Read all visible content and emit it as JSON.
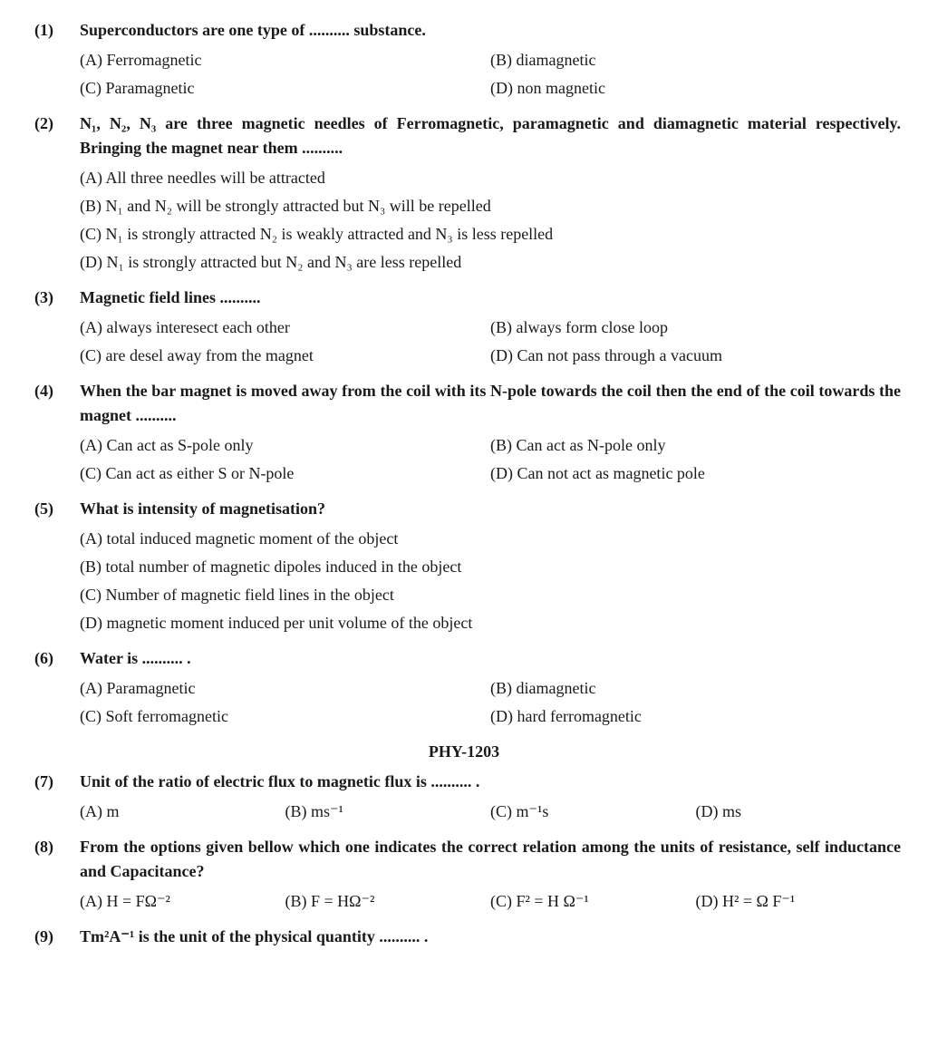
{
  "section_code": "PHY-1203",
  "questions": [
    {
      "num": "(1)",
      "text": "Superconductors are one type of .......... substance.",
      "layout": "col2",
      "opts": {
        "A": "(A) Ferromagnetic",
        "B": "(B) diamagnetic",
        "C": "(C) Paramagnetic",
        "D": "(D) non magnetic"
      }
    },
    {
      "num": "(2)",
      "text": "N₁, N₂, N₃ are three magnetic needles of Ferromagnetic, paramagnetic and diamagnetic material respectively. Bringing the magnet near them ..........",
      "layout": "col1",
      "opts": {
        "A": "(A) All three needles will be attracted",
        "B": "(B) N₁ and N₂ will be strongly attracted but N₃ will be repelled",
        "C": "(C) N₁ is strongly attracted N₂ is weakly attracted and N₃ is less repelled",
        "D": "(D) N₁ is strongly attracted but N₂ and N₃ are less repelled"
      }
    },
    {
      "num": "(3)",
      "text": "Magnetic field lines ..........",
      "layout": "col2",
      "opts": {
        "A": "(A) always interesect each other",
        "B": "(B) always form close loop",
        "C": "(C) are desel away from the magnet",
        "D": "(D) Can not pass through a vacuum"
      }
    },
    {
      "num": "(4)",
      "text": "When the bar magnet is moved away from the coil with its N-pole towards the coil then the end of the coil towards the magnet ..........",
      "layout": "col2",
      "opts": {
        "A": "(A) Can act as S-pole only",
        "B": "(B) Can act as N-pole only",
        "C": "(C) Can act as either S or N-pole",
        "D": "(D) Can not act as magnetic pole"
      }
    },
    {
      "num": "(5)",
      "text": "What is intensity of magnetisation?",
      "layout": "col1",
      "opts": {
        "A": "(A) total induced magnetic moment of the object",
        "B": "(B) total number of magnetic dipoles induced in the object",
        "C": "(C) Number of magnetic field lines in the object",
        "D": "(D) magnetic moment induced per unit volume of the object"
      }
    },
    {
      "num": "(6)",
      "text": "Water is .......... .",
      "layout": "col2",
      "opts": {
        "A": "(A) Paramagnetic",
        "B": "(B) diamagnetic",
        "C": "(C) Soft ferromagnetic",
        "D": "(D) hard ferromagnetic"
      }
    },
    {
      "num": "(7)",
      "text": "Unit of the ratio of electric flux to magnetic flux is .......... .",
      "layout": "col4",
      "opts": {
        "A": "(A) m",
        "B": "(B) ms⁻¹",
        "C": "(C) m⁻¹s",
        "D": "(D) ms"
      }
    },
    {
      "num": "(8)",
      "text": "From the options given bellow which one indicates the correct relation among the units of resistance, self inductance and Capacitance?",
      "layout": "col4",
      "opts": {
        "A": "(A) H = FΩ⁻²",
        "B": "(B) F = HΩ⁻²",
        "C": "(C) F² = H Ω⁻¹",
        "D": "(D) H² = Ω F⁻¹"
      }
    },
    {
      "num": "(9)",
      "text": "Tm²A⁻¹ is the unit of the physical quantity .......... .",
      "layout": "col4",
      "opts": {}
    }
  ]
}
